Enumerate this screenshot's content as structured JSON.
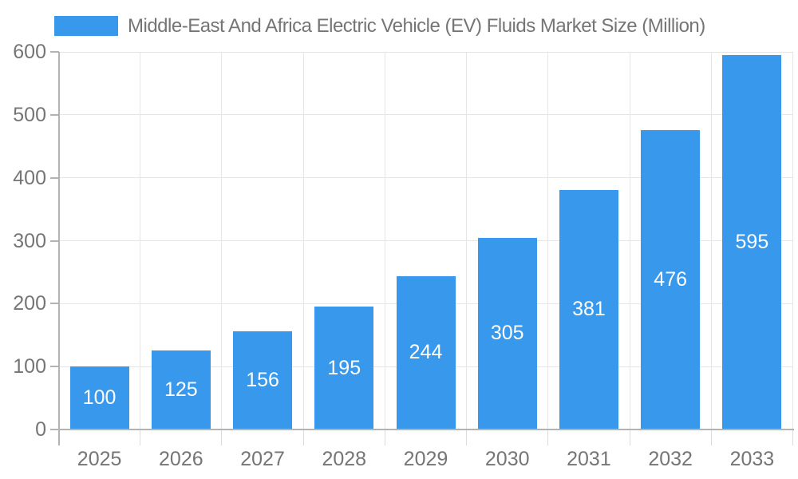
{
  "colors": {
    "bar": "#3898ec",
    "bar_value_text": "#ffffff",
    "axis_text": "#757575",
    "title_text": "#757575",
    "gridline": "#e6e6e6",
    "axis_line": "#b3b3b3",
    "tick_line": "#dcdcdc",
    "background": "#ffffff"
  },
  "legend": {
    "position": "top",
    "swatch_color": "#3898ec",
    "label": "Middle-East And Africa Electric Vehicle (EV) Fluids Market Size (Million)"
  },
  "chart_data": {
    "type": "bar",
    "title": "Middle-East And Africa Electric Vehicle (EV) Fluids Market Size (Million)",
    "categories": [
      "2025",
      "2026",
      "2027",
      "2028",
      "2029",
      "2030",
      "2031",
      "2032",
      "2033"
    ],
    "values": [
      100,
      125,
      156,
      195,
      244,
      305,
      381,
      476,
      595
    ],
    "series_name": "Middle-East And Africa Electric Vehicle (EV) Fluids Market Size (Million)",
    "xlabel": "",
    "ylabel": "",
    "ylim": [
      0,
      600
    ],
    "yticks": [
      0,
      100,
      200,
      300,
      400,
      500,
      600
    ],
    "grid": true,
    "value_labels": "inside-center",
    "legend_position": "top",
    "bar_color": "#3898ec"
  }
}
